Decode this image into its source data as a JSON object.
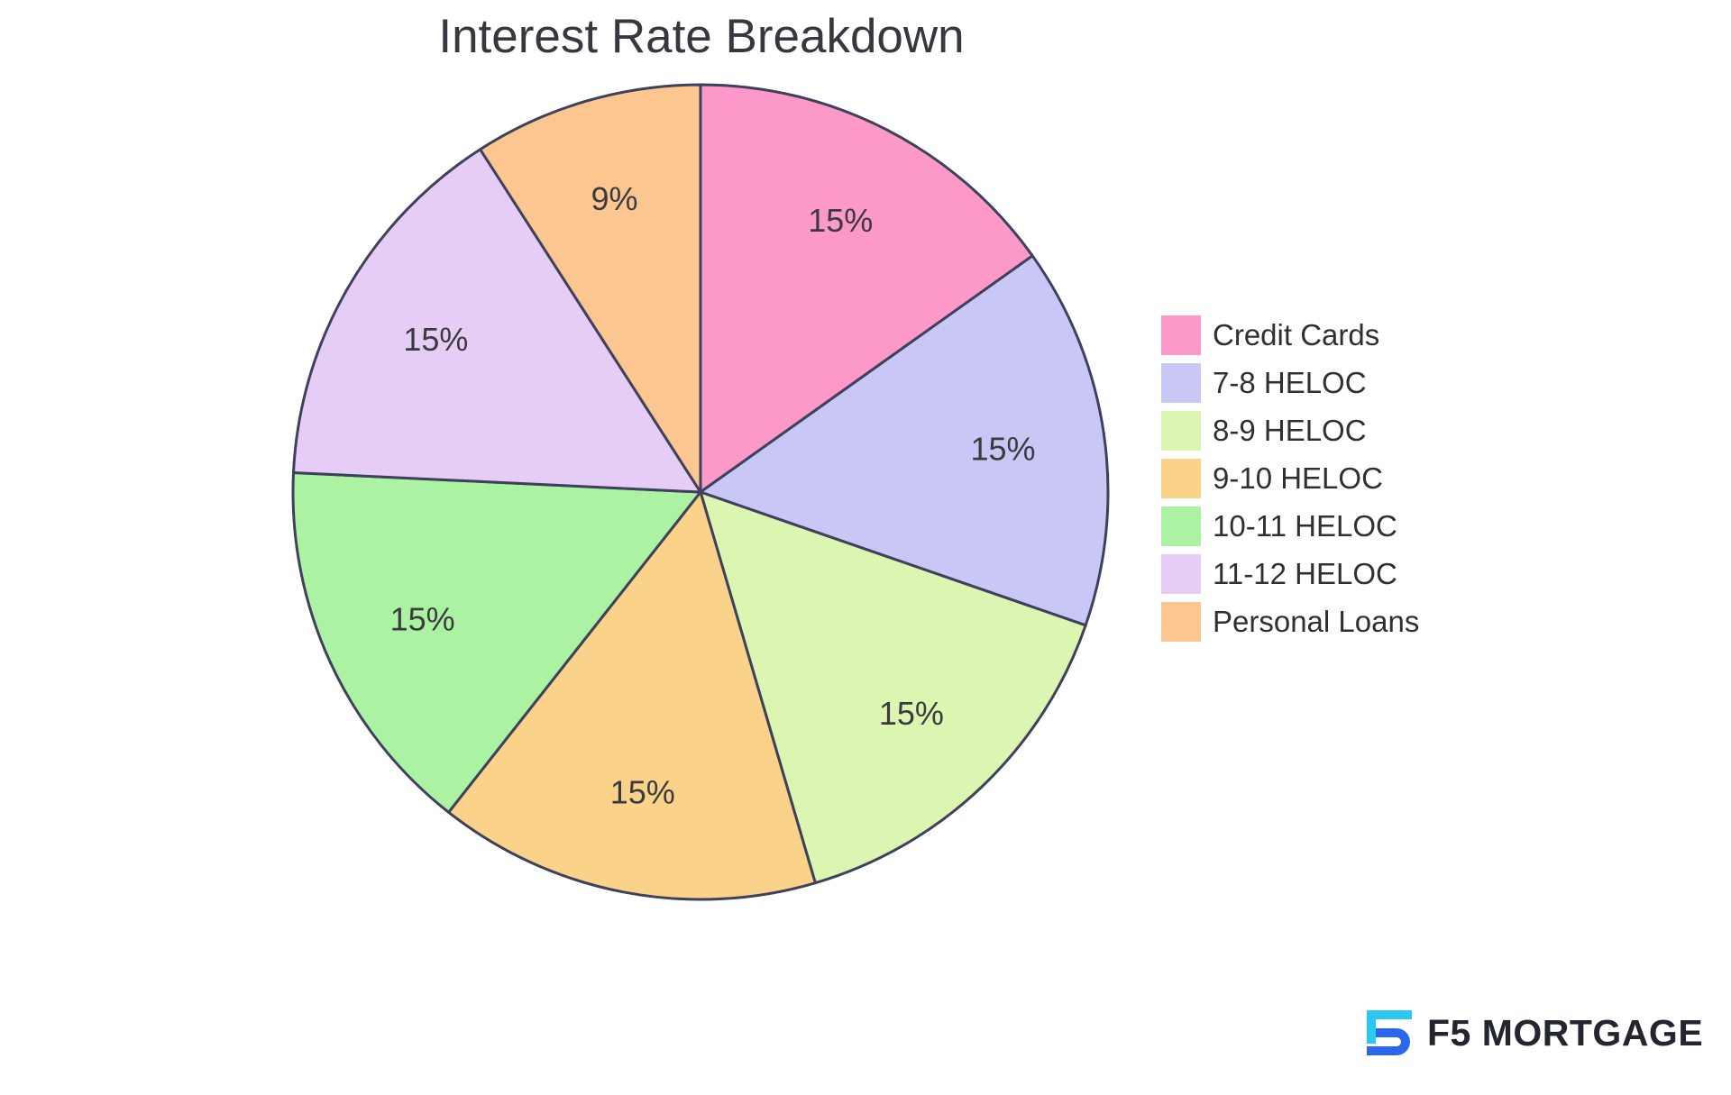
{
  "title": {
    "text": "Interest Rate Breakdown"
  },
  "chart_data": {
    "type": "pie",
    "title": "Interest Rate Breakdown",
    "unit": "percent",
    "direction": "clockwise",
    "start_angle": "12-o-clock",
    "legend_position": "right",
    "grid": false,
    "outline_color": "#3F415C",
    "label_color": "#3B3B3F",
    "label_distance": 0.75,
    "slices": [
      {
        "label": "Credit Cards",
        "value": 15,
        "display": "15%",
        "color": "#FC99C8"
      },
      {
        "label": "7-8 HELOC",
        "value": 15,
        "display": "15%",
        "color": "#C9C7F5"
      },
      {
        "label": "8-9 HELOC",
        "value": 15,
        "display": "15%",
        "color": "#DCF5B1"
      },
      {
        "label": "9-10 HELOC",
        "value": 15,
        "display": "15%",
        "color": "#FAD289"
      },
      {
        "label": "10-11 HELOC",
        "value": 15,
        "display": "15%",
        "color": "#ACF2A3"
      },
      {
        "label": "11-12 HELOC",
        "value": 15,
        "display": "15%",
        "color": "#E5CDF6"
      },
      {
        "label": "Personal Loans",
        "value": 9,
        "display": "9%",
        "color": "#FBC68F"
      }
    ]
  },
  "branding": {
    "text": "F5 MORTGAGE",
    "icon": "f5-logo-icon",
    "icon_color_top": "#2BC9F2",
    "icon_color_bottom": "#2968EE",
    "text_color": "#23252F"
  }
}
